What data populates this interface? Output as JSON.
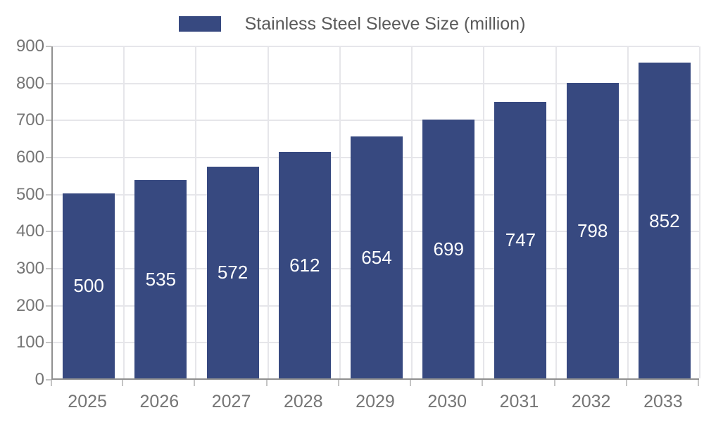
{
  "chart_data": {
    "type": "bar",
    "title": "",
    "legend": {
      "label": "Stainless Steel Sleeve Size (million)",
      "position": "top-center"
    },
    "categories": [
      "2025",
      "2026",
      "2027",
      "2028",
      "2029",
      "2030",
      "2031",
      "2032",
      "2033"
    ],
    "series": [
      {
        "name": "Stainless Steel Sleeve Size (million)",
        "values": [
          500,
          535,
          572,
          612,
          654,
          699,
          747,
          798,
          852
        ]
      }
    ],
    "xlabel": "",
    "ylabel": "",
    "ylim": [
      0,
      900
    ],
    "ytick_step": 100,
    "grid": true,
    "bar_value_labels": "inside-center"
  },
  "colors": {
    "bar": "#374980",
    "bar_label": "#ffffff",
    "legend_text": "#5a5a5a",
    "axis_label": "#757575",
    "axis_line": "#909090",
    "grid_line": "#e6e6ea",
    "tick_mark": "#c4c4c4",
    "background": "#ffffff"
  }
}
